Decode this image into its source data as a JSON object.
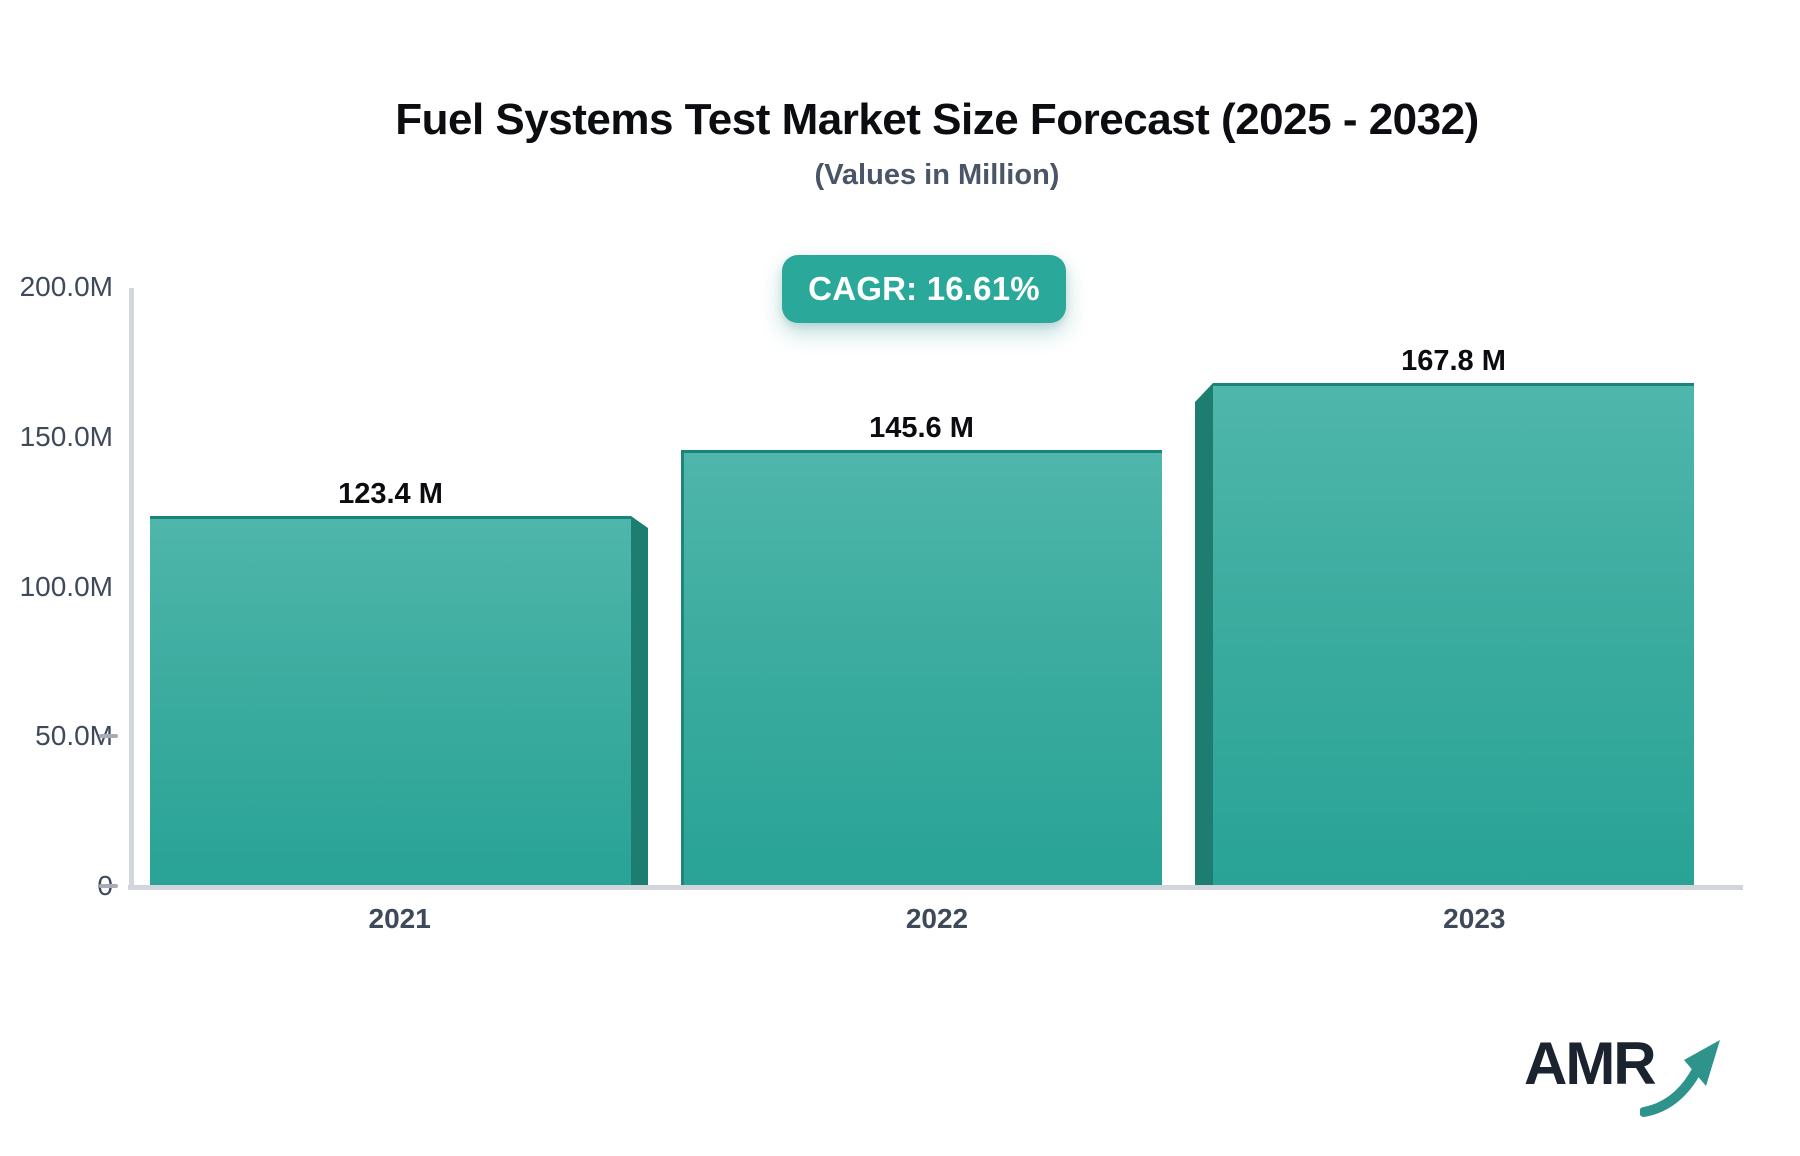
{
  "header": {
    "title": "Fuel Systems Test Market Size Forecast (2025 - 2032)",
    "subtitle": "(Values in Million)"
  },
  "cagr_badge": {
    "label": "CAGR: 16.61%",
    "bg_color": "#2aa99b",
    "text_color": "#ffffff"
  },
  "chart_data": {
    "type": "bar",
    "title": "Fuel Systems Test Market Size Forecast (2025 - 2032)",
    "subtitle": "(Values in Million)",
    "cagr": "16.61%",
    "categories": [
      "2021",
      "2022",
      "2023"
    ],
    "values": [
      123.4,
      145.6,
      167.8
    ],
    "value_labels": [
      "123.4 M",
      "145.6 M",
      "167.8 M"
    ],
    "xlabel": "",
    "ylabel": "",
    "ylim": [
      0,
      200
    ],
    "y_ticks": [
      {
        "label": "200.0M",
        "value": 200
      },
      {
        "label": "150.0M",
        "value": 150
      },
      {
        "label": "100.0M",
        "value": 100
      },
      {
        "label": "50.0M",
        "value": 50
      },
      {
        "label": "0",
        "value": 0
      }
    ],
    "grid": "off",
    "legend": "none",
    "colors": {
      "bar_face_top": "#4fb6ab",
      "bar_face_bottom": "#28a396",
      "bar_top_edge": "#178578",
      "bar_side_face": "#1e7d71",
      "axis_line": "#d4d6de",
      "tick_text": "#3e4a5a",
      "value_text": "#0b0c10"
    }
  },
  "logo": {
    "text": "AMR",
    "text_color": "#1b232e",
    "arrow_color": "#2d938b"
  }
}
